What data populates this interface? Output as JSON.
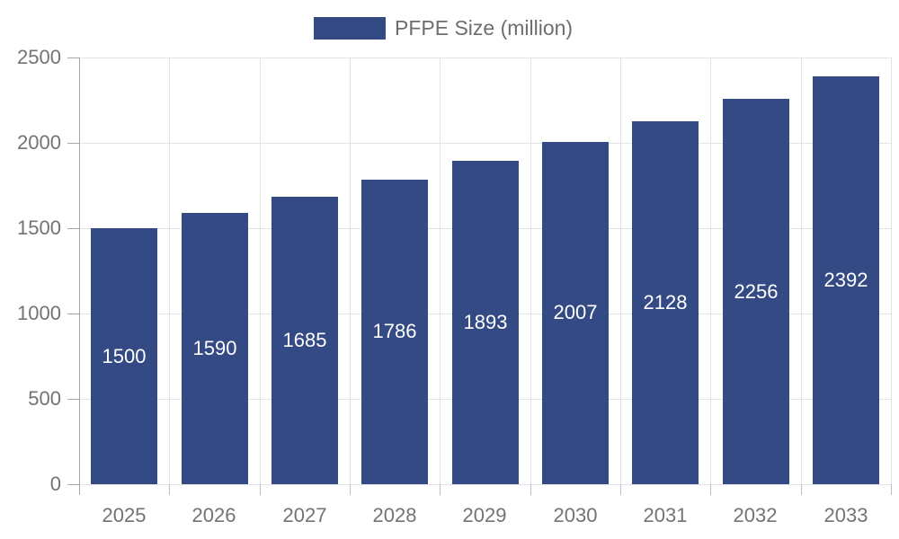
{
  "legend": {
    "label": "PFPE Size (million)"
  },
  "colors": {
    "bar": "#344a85",
    "axis_label": "#737376",
    "legend_label": "#6e6e70",
    "gridline": "#e3e3e7",
    "axis_line": "#a8a8ac",
    "value_label": "#ffffff",
    "background": "#ffffff"
  },
  "chart_data": {
    "type": "bar",
    "title": "",
    "xlabel": "",
    "ylabel": "",
    "categories": [
      "2025",
      "2026",
      "2027",
      "2028",
      "2029",
      "2030",
      "2031",
      "2032",
      "2033"
    ],
    "series": [
      {
        "name": "PFPE Size (million)",
        "values": [
          1500,
          1590,
          1685,
          1786,
          1893,
          2007,
          2128,
          2256,
          2392
        ]
      }
    ],
    "ylim": [
      0,
      2500
    ],
    "yticks": [
      0,
      500,
      1000,
      1500,
      2000,
      2500
    ],
    "grid": true,
    "legend_position": "top",
    "value_label_position": "inside-center"
  }
}
